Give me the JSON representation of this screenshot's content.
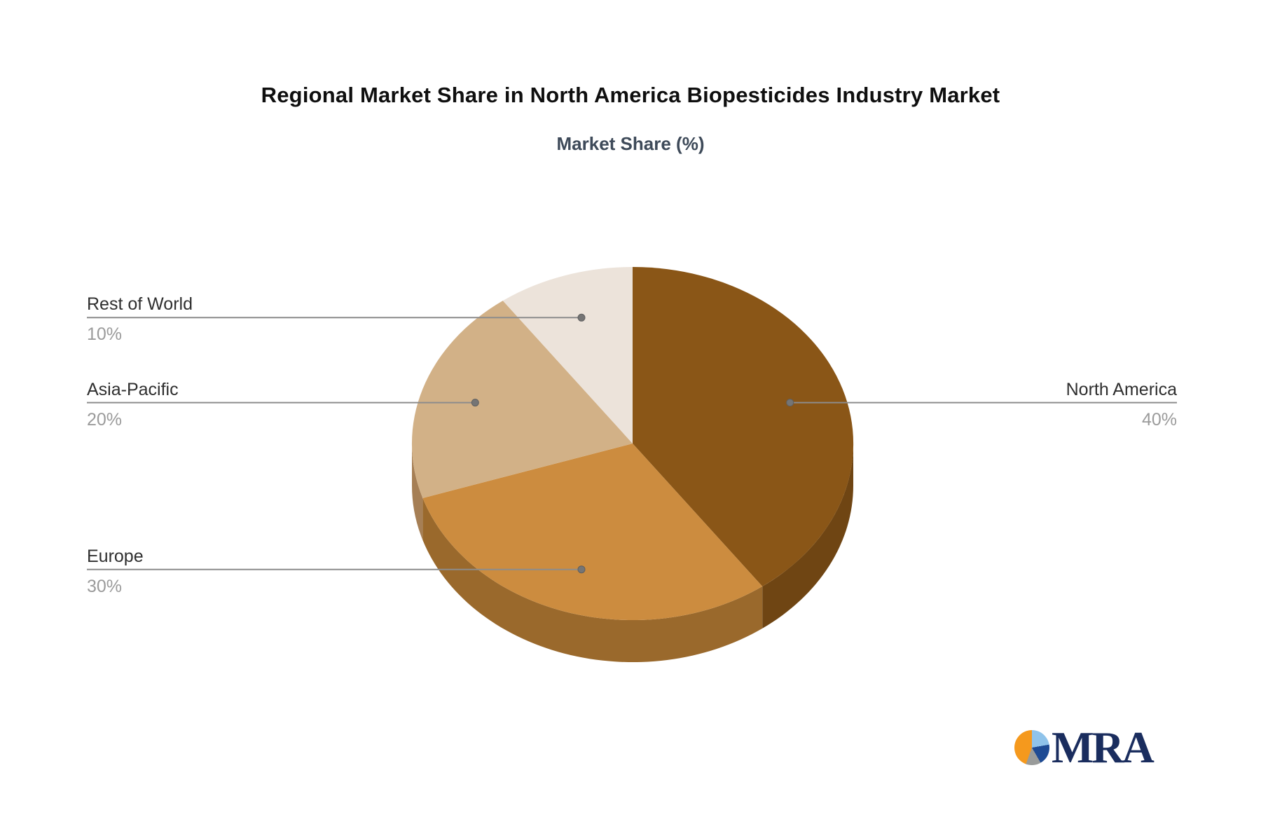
{
  "header": {
    "title": "Regional Market Share in North America Biopesticides Industry Market",
    "subtitle": "Market Share (%)",
    "title_color": "#0f0f0f",
    "subtitle_color": "#3e4a59"
  },
  "chart_data": {
    "type": "pie",
    "title": "Regional Market Share in North America Biopesticides Industry Market",
    "subtitle": "Market Share (%)",
    "labels": [
      "North America",
      "Europe",
      "Asia-Pacific",
      "Rest of World"
    ],
    "values": [
      40,
      30,
      20,
      10
    ],
    "value_labels": [
      "40%",
      "30%",
      "20%",
      "10%"
    ],
    "unit": "%",
    "start_angle_deg": 0,
    "direction": "clockwise",
    "effect": "3d-extruded",
    "legend_position": "none",
    "slice_colors": [
      "#8A5617",
      "#CC8C3F",
      "#D2B187",
      "#ECE3DA"
    ],
    "slice_side_colors": [
      "#6F4513",
      "#9A692C",
      "#A67F55",
      "#B9A78F"
    ],
    "leader_line_color": "#8C8C8C",
    "leader_dot_color": "#757575",
    "label_color": "#2F2F2F",
    "pct_color": "#9B9B9B"
  },
  "logo": {
    "text": "MRA",
    "text_color": "#1A2D5E",
    "pie_slices": [
      {
        "color": "#8FC3EA",
        "start": 0,
        "end": 80
      },
      {
        "color": "#1E4B94",
        "start": 80,
        "end": 150
      },
      {
        "color": "#999B9A",
        "start": 150,
        "end": 200
      },
      {
        "color": "#F5991D",
        "start": 200,
        "end": 360
      }
    ]
  }
}
